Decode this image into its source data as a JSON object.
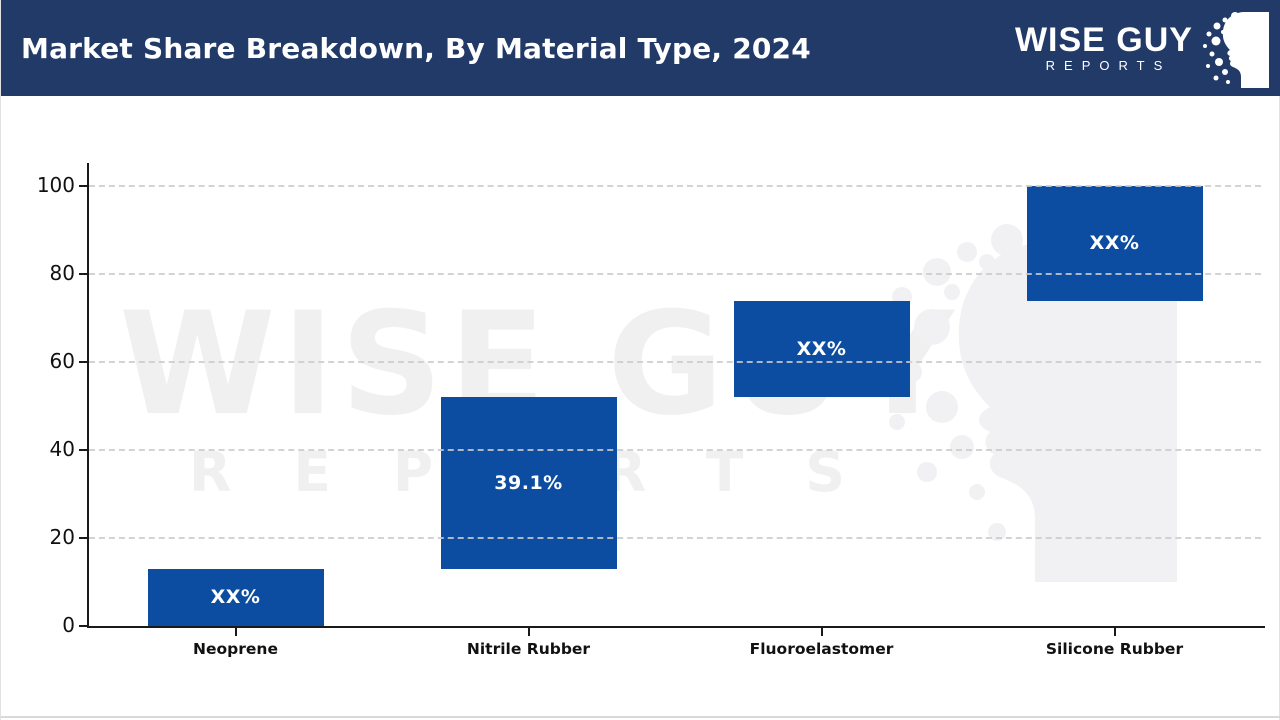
{
  "header": {
    "title": "Market Share Breakdown, By Material Type, 2024",
    "bg_color": "#223a68",
    "logo": {
      "line1": "WISE GUY",
      "line2": "REPORTS"
    }
  },
  "watermark": {
    "line1": "WISE GUY",
    "line2": "REPORTS"
  },
  "chart_data": {
    "type": "bar",
    "subtype": "floating-waterfall",
    "title": "Market Share Breakdown, By Material Type, 2024",
    "categories": [
      "Neoprene",
      "Nitrile Rubber",
      "Fluoroelastomer",
      "Silicone Rubber"
    ],
    "segments": [
      {
        "category": "Neoprene",
        "start": 0,
        "end": 13.0,
        "label": "XX%"
      },
      {
        "category": "Nitrile Rubber",
        "start": 13.0,
        "end": 52.1,
        "label": "39.1%"
      },
      {
        "category": "Fluoroelastomer",
        "start": 52.1,
        "end": 73.9,
        "label": "XX%"
      },
      {
        "category": "Silicone Rubber",
        "start": 73.9,
        "end": 100.0,
        "label": "XX%"
      }
    ],
    "xlabel": "",
    "ylabel": "",
    "ylim": [
      0,
      100
    ],
    "yticks": [
      0,
      20,
      40,
      60,
      80,
      100
    ],
    "grid": "horizontal-dashed",
    "legend": "none",
    "bar_color": "#0d4da1",
    "bar_label_color": "#ffffff"
  }
}
